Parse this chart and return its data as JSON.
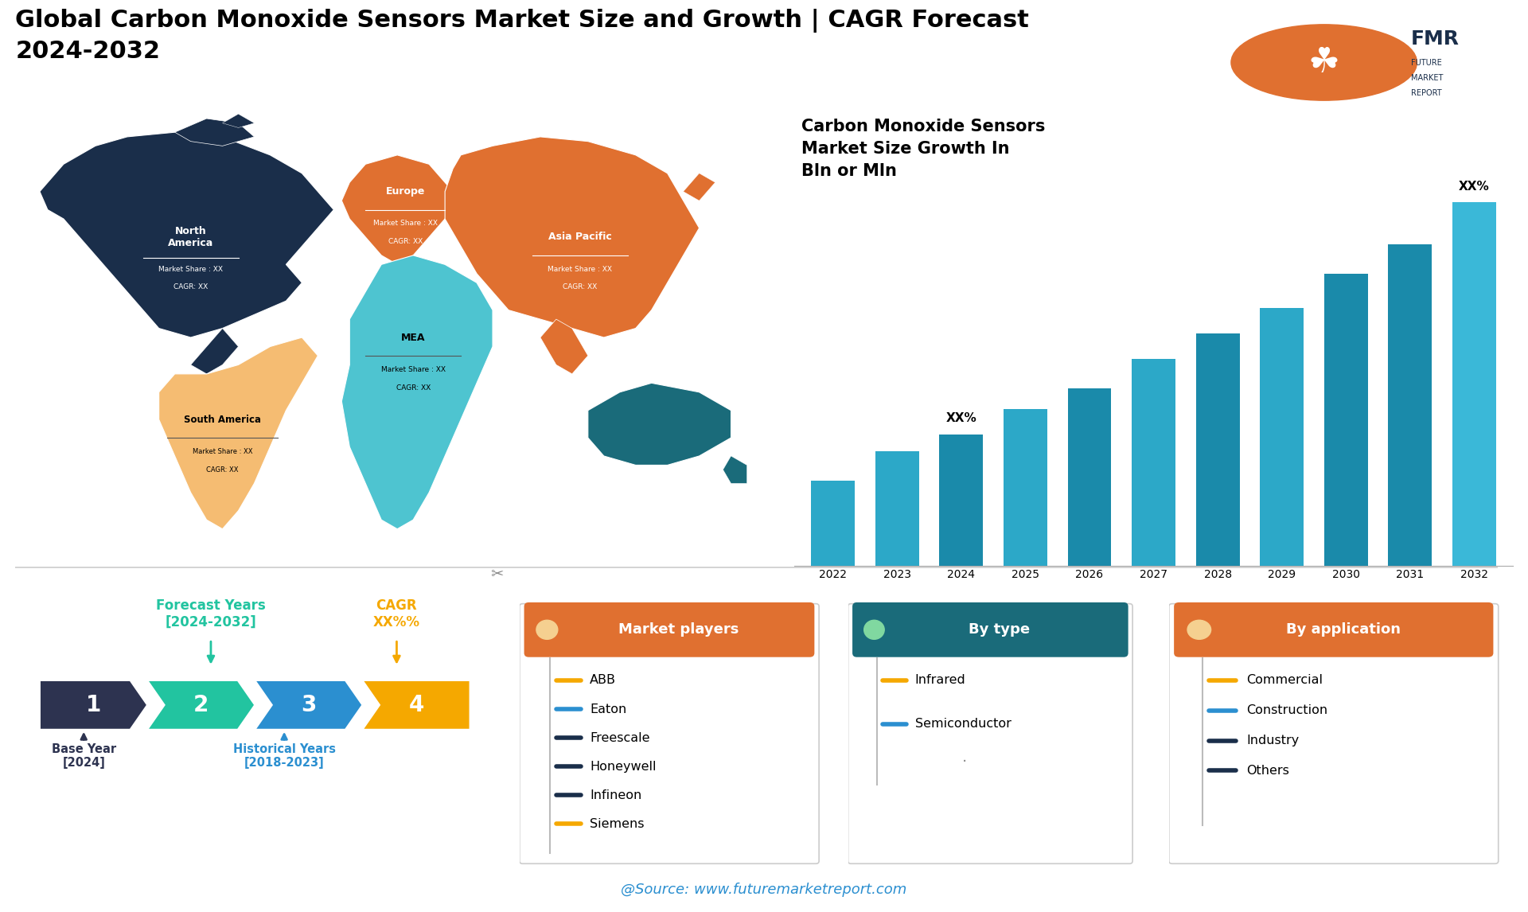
{
  "title": "Global Carbon Monoxide Sensors Market Size and Growth | CAGR Forecast\n2024-2032",
  "chart_title": "Carbon Monoxide Sensors\nMarket Size Growth In\nBln or Mln",
  "bar_years": [
    "2022",
    "2023",
    "2024",
    "2025",
    "2026",
    "2027",
    "2028",
    "2029",
    "2030",
    "2031",
    "2032"
  ],
  "bar_values": [
    1.0,
    1.35,
    1.55,
    1.85,
    2.1,
    2.45,
    2.75,
    3.05,
    3.45,
    3.8,
    4.3
  ],
  "bar_color_main": "#2ca8c8",
  "bar_color_2032": "#2ca8c8",
  "bar_annotation_2024": "XX%",
  "bar_annotation_2032": "XX%",
  "na_color": "#1a2e4a",
  "sa_color": "#f5bc72",
  "europe_color": "#e07030",
  "mea_color": "#4ec4d0",
  "asia_color": "#e07030",
  "australia_color": "#1a6b7a",
  "timeline_labels": [
    "1",
    "2",
    "3",
    "4"
  ],
  "timeline_colors": [
    "#2d3350",
    "#22c4a0",
    "#2b8fd0",
    "#f5a800"
  ],
  "forecast_label": "Forecast Years\n[2024-2032]",
  "forecast_color": "#22c4a0",
  "historical_label": "Historical Years\n[2018-2023]",
  "historical_color": "#2b8fd0",
  "base_year_label": "Base Year\n[2024]",
  "base_year_color": "#2d3350",
  "cagr_label": "CAGR\nXX%%",
  "cagr_color": "#f5a800",
  "market_players_label": "Market players",
  "market_players_color": "#e07030",
  "market_players": [
    "ABB",
    "Eaton",
    "Freescale",
    "Honeywell",
    "Infineon",
    "Siemens"
  ],
  "market_players_line_colors": [
    "#f5a800",
    "#2b8fd0",
    "#1a2e4a",
    "#1a2e4a",
    "#1a2e4a",
    "#f5a800"
  ],
  "by_type_label": "By type",
  "by_type_color": "#1a6b7a",
  "by_type_items": [
    "Infrared",
    "Semiconductor"
  ],
  "by_type_line_colors": [
    "#f5a800",
    "#2b8fd0"
  ],
  "by_application_label": "By application",
  "by_application_color": "#e07030",
  "by_application_items": [
    "Commercial",
    "Construction",
    "Industry",
    "Others"
  ],
  "by_application_line_colors": [
    "#f5a800",
    "#2b8fd0",
    "#1a2e4a",
    "#1a2e4a"
  ],
  "source_text": "@Source: www.futuremarketreport.com",
  "bg_color": "#ffffff",
  "title_fontsize": 22
}
